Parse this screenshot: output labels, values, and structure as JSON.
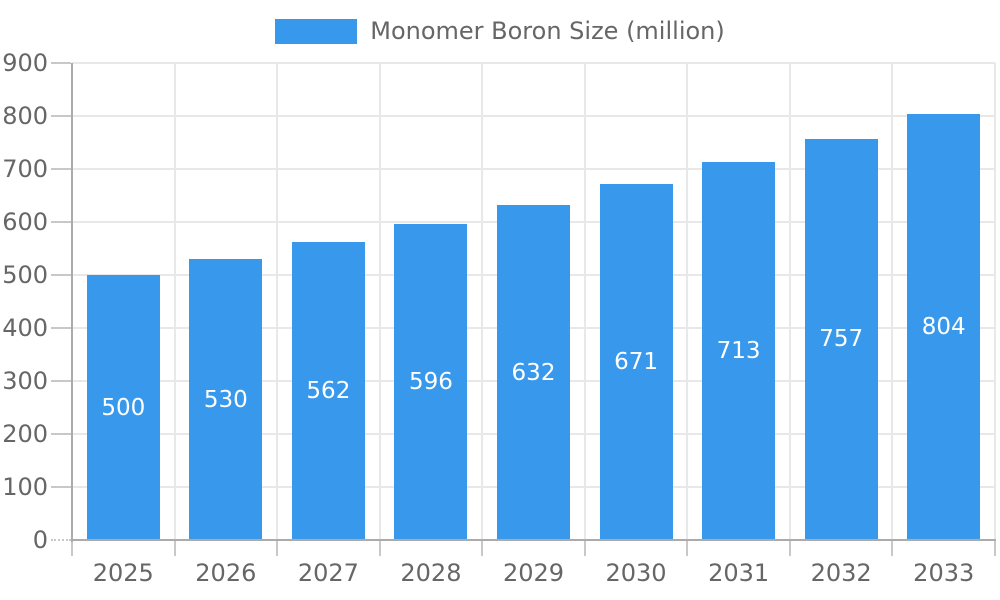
{
  "chart_data": {
    "type": "bar",
    "title": "",
    "legend": {
      "label": "Monomer Boron Size (million)",
      "position": "top"
    },
    "categories": [
      "2025",
      "2026",
      "2027",
      "2028",
      "2029",
      "2030",
      "2031",
      "2032",
      "2033"
    ],
    "values": [
      500,
      530,
      562,
      596,
      632,
      671,
      713,
      757,
      804
    ],
    "xlabel": "",
    "ylabel": "",
    "ylim": [
      0,
      900
    ],
    "yticks": [
      0,
      100,
      200,
      300,
      400,
      500,
      600,
      700,
      800,
      900
    ],
    "grid": true,
    "bar_value_labels_visible": true,
    "colors": {
      "bar": "#3899EC",
      "axis_text": "#666666",
      "bar_value_text": "#FFFFFF",
      "gridline": "#E8E8E8",
      "tick": "#C8C8C8",
      "axis_line": "#ABABAB",
      "background": "#FFFFFF"
    }
  }
}
